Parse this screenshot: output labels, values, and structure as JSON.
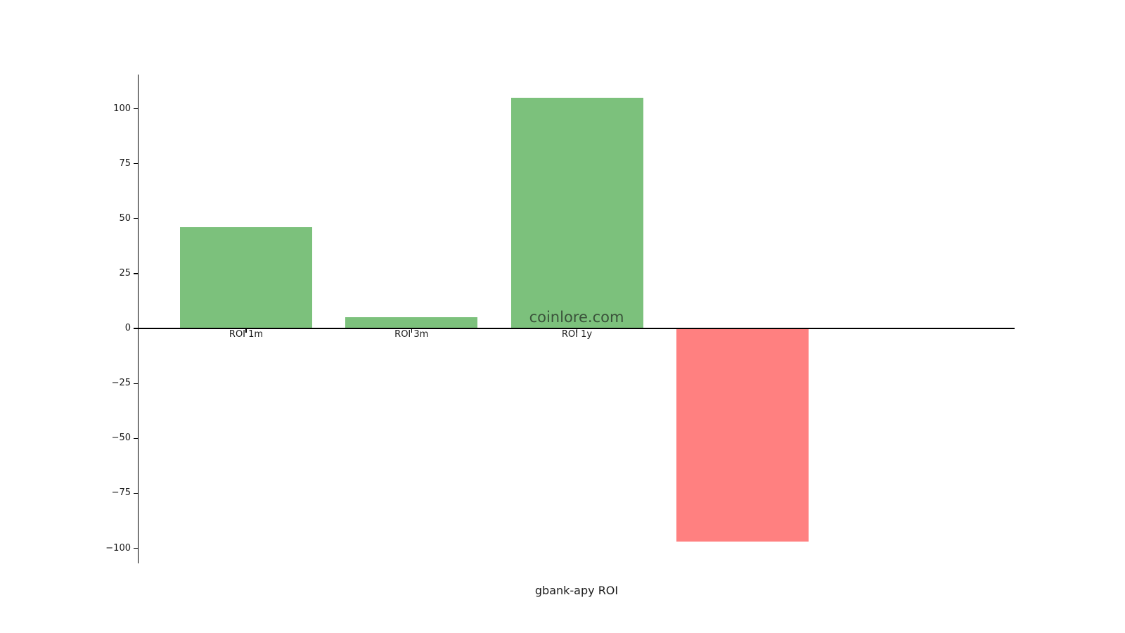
{
  "chart_data": {
    "type": "bar",
    "xlabel": "gbank-apy ROI",
    "watermark": "coinlore.com",
    "categories": [
      "ROI 1m",
      "ROI 3m",
      "ROI 1y",
      ""
    ],
    "values": [
      46,
      5,
      105,
      -97
    ],
    "positive_color": "#7cc17c",
    "negative_color": "#ff8080",
    "axis_color": "#000000",
    "yticks": [
      100,
      75,
      50,
      25,
      0,
      -25,
      -50,
      -75,
      -100
    ],
    "ylim": [
      -107,
      115
    ],
    "grid": false,
    "legend": false
  }
}
